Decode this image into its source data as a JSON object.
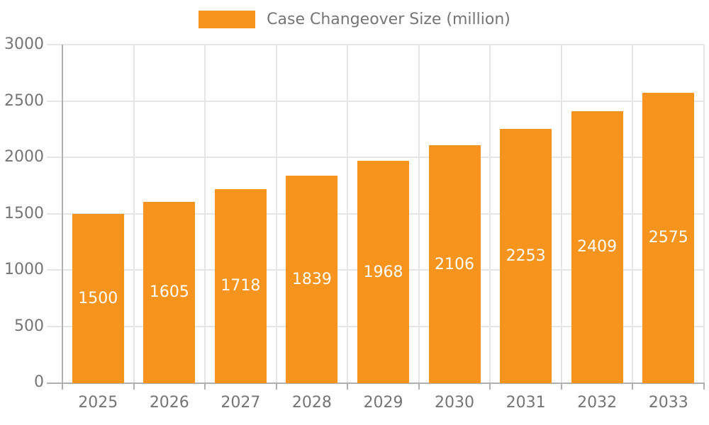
{
  "chart_data": {
    "type": "bar",
    "title": "Case Changeover Size (million)",
    "categories": [
      "2025",
      "2026",
      "2027",
      "2028",
      "2029",
      "2030",
      "2031",
      "2032",
      "2033"
    ],
    "values": [
      1500,
      1605,
      1718,
      1839,
      1968,
      2106,
      2253,
      2409,
      2575
    ],
    "yticks": [
      0,
      500,
      1000,
      1500,
      2000,
      2500,
      3000
    ],
    "ylim": [
      0,
      3000
    ],
    "xlabel": "",
    "ylabel": "",
    "grid": true,
    "legend_position": "top",
    "colors": {
      "bar": "#f7941e",
      "bar_label": "#ffffff",
      "grid_line": "#e6e6e6",
      "axis_line": "#b0b0b0",
      "axis_text": "#757575",
      "background": "#ffffff"
    }
  }
}
